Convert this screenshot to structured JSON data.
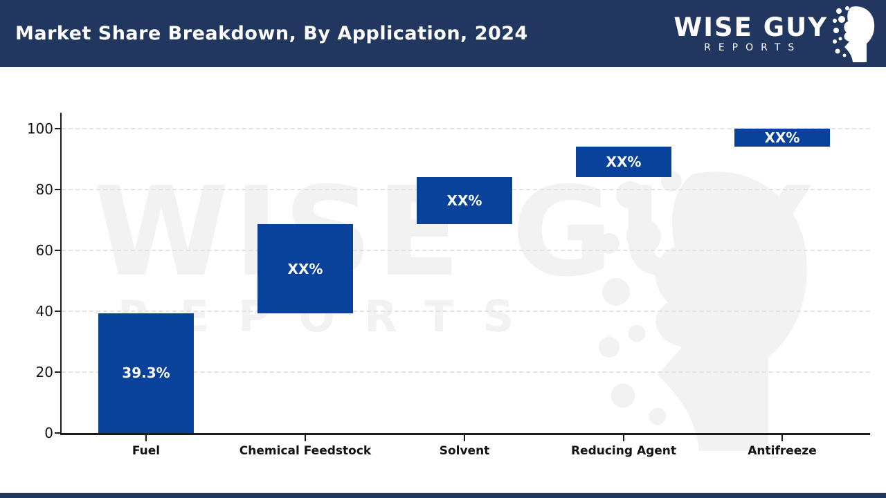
{
  "header": {
    "title": "Market Share Breakdown, By Application, 2024",
    "bg_color": "#213760",
    "logo": {
      "line1": "WISE GUY",
      "line2": "REPORTS"
    }
  },
  "watermark": {
    "line1": "WISE GUY",
    "line2": "REPORTS"
  },
  "chart_data": {
    "type": "bar",
    "subtype": "waterfall",
    "title": "Market Share Breakdown, By Application, 2024",
    "categories": [
      "Fuel",
      "Chemical Feedstock",
      "Solvent",
      "Reducing Agent",
      "Antifreeze"
    ],
    "segments": [
      {
        "category": "Fuel",
        "start": 0,
        "end": 39.3,
        "label": "39.3%"
      },
      {
        "category": "Chemical Feedstock",
        "start": 39.3,
        "end": 68.5,
        "label": "XX%"
      },
      {
        "category": "Solvent",
        "start": 68.5,
        "end": 84,
        "label": "XX%"
      },
      {
        "category": "Reducing Agent",
        "start": 84,
        "end": 94,
        "label": "XX%"
      },
      {
        "category": "Antifreeze",
        "start": 94,
        "end": 100,
        "label": "XX%"
      }
    ],
    "yticks": [
      0,
      20,
      40,
      60,
      80,
      100
    ],
    "ylim": [
      0,
      105
    ],
    "xlabel": "",
    "ylabel": "",
    "grid": "horizontal-dashed",
    "legend": "none",
    "bar_color": "#09429B",
    "bar_label_color": "#FFFFFF",
    "axis_color": "#1C1C1C",
    "gridline_color": "#E2E2E2"
  }
}
